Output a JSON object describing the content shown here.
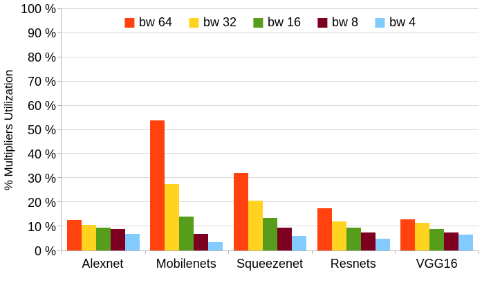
{
  "chart_data": {
    "type": "bar",
    "title": "",
    "xlabel": "",
    "ylabel": "% Multipliers Utilization",
    "ylim": [
      0,
      100
    ],
    "grid": true,
    "legend_position": "top-center",
    "y_ticks": [
      "0 %",
      "10 %",
      "20 %",
      "30 %",
      "40 %",
      "50 %",
      "60 %",
      "70 %",
      "80 %",
      "90 %",
      "100 %"
    ],
    "categories": [
      "Alexnet",
      "Mobilenets",
      "Squeezenet",
      "Resnets",
      "VGG16"
    ],
    "series": [
      {
        "name": "bw 64",
        "color": "#ff420e",
        "values": [
          12.5,
          54,
          32,
          17.5,
          13
        ]
      },
      {
        "name": "bw 32",
        "color": "#ffd320",
        "values": [
          10.5,
          27.5,
          20.5,
          12,
          11.5
        ]
      },
      {
        "name": "bw 16",
        "color": "#579d1c",
        "values": [
          9.5,
          14,
          13.5,
          9.5,
          9
        ]
      },
      {
        "name": "bw 8",
        "color": "#7e0021",
        "values": [
          9,
          7,
          9.5,
          7.5,
          7.5
        ]
      },
      {
        "name": "bw 4",
        "color": "#83caff",
        "values": [
          7,
          3.5,
          6,
          5,
          6.5
        ]
      }
    ],
    "colors": {
      "background": "#ffffff",
      "text": "#000000",
      "gridline": "#d9d9d9",
      "axis": "#b3b3b3"
    }
  }
}
